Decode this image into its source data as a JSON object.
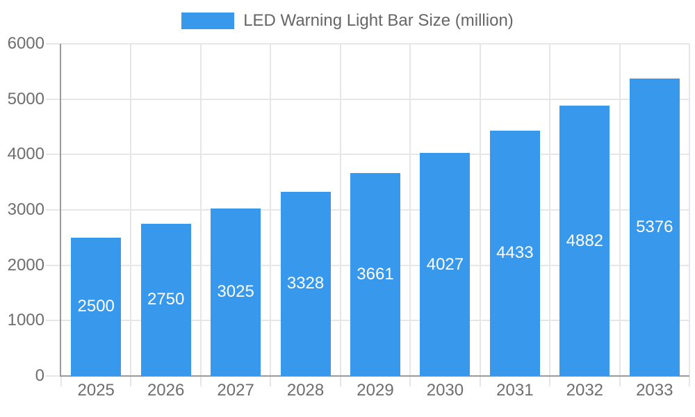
{
  "chart_data": {
    "type": "bar",
    "title": "LED Warning Light Bar Size (million)",
    "categories": [
      "2025",
      "2026",
      "2027",
      "2028",
      "2029",
      "2030",
      "2031",
      "2032",
      "2033"
    ],
    "values": [
      2500,
      2750,
      3025,
      3328,
      3661,
      4027,
      4433,
      4882,
      5376
    ],
    "series": [
      {
        "name": "LED Warning Light Bar Size (million)",
        "values": [
          2500,
          2750,
          3025,
          3328,
          3661,
          4027,
          4433,
          4882,
          5376
        ]
      }
    ],
    "xlabel": "",
    "ylabel": "",
    "ylim": [
      0,
      6000
    ],
    "y_ticks": [
      0,
      1000,
      2000,
      3000,
      4000,
      5000,
      6000
    ],
    "grid": true,
    "legend_position": "top",
    "bar_color": "#3898EC",
    "value_label_color": "#FFFFFF",
    "axis_label_color": "#6E6E6E",
    "legend_text_color": "#666666",
    "grid_color": "#E6E6E6",
    "axis_line_color": "#999999"
  }
}
